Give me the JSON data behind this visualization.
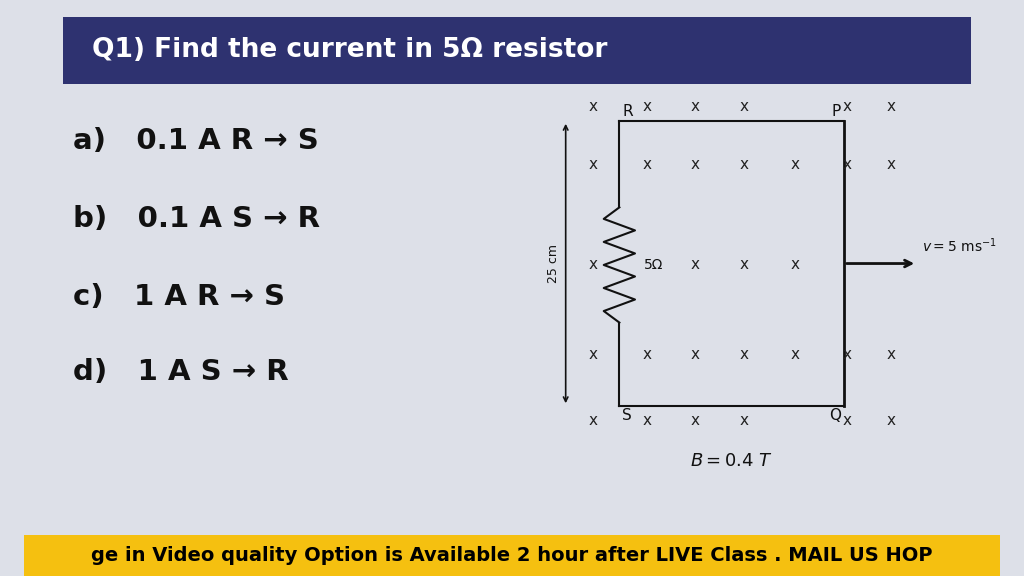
{
  "title": "Q1) Find the current in 5Ω resistor",
  "title_bg": "#2e3270",
  "title_color": "#ffffff",
  "bg_color": "#dde0e8",
  "options": [
    "a)   0.1 A R → S",
    "b)   0.1 A S → R",
    "c)   1 A R → S",
    "d)   1 A S → R"
  ],
  "option_fontsize": 21,
  "diagram": {
    "xs_color": "#222222",
    "line_color": "#111111",
    "resistor_label": "5Ω",
    "dim_label": "25 cm",
    "B_label": "B = 0.4 T",
    "v_label": "v = 5 ms"
  },
  "bottom_banner": {
    "text": "ge in Video quality Option is Available 2 hour after LIVE Class . MAIL US HOP",
    "bg": "#f5c010",
    "color": "#000000",
    "fontsize": 14
  }
}
